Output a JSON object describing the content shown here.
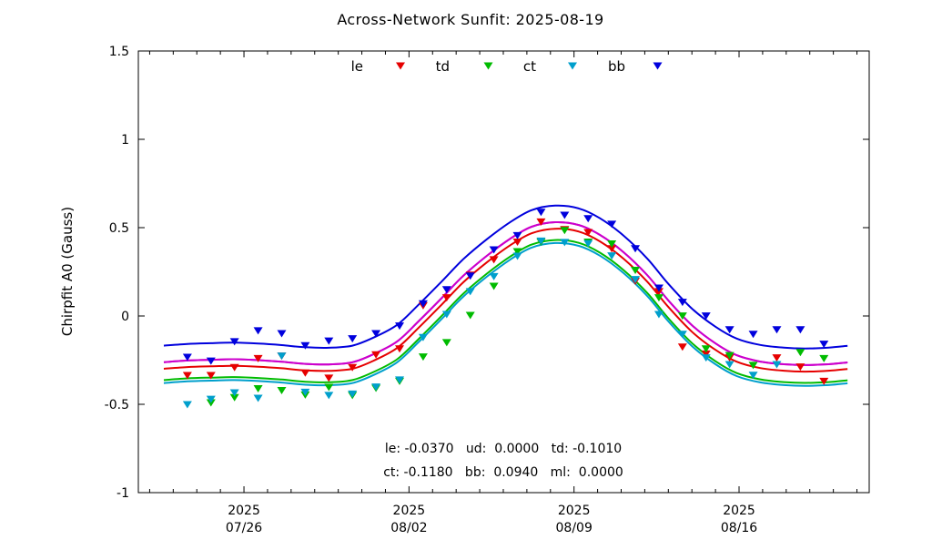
{
  "chart_data": {
    "type": "line",
    "title": "Across-Network Sunfit: 2025-08-19",
    "ylabel": "Chirpfit A0 (Gauss)",
    "ylim": [
      -1,
      1.5
    ],
    "grid": false,
    "legend_position": "top-inside",
    "y_ticks": [
      {
        "label": "1.5",
        "value": 1.5
      },
      {
        "label": "1",
        "value": 1.0
      },
      {
        "label": "0.5",
        "value": 0.5
      },
      {
        "label": "0",
        "value": 0.0
      },
      {
        "label": "-0.5",
        "value": -0.5
      },
      {
        "label": "-1",
        "value": -1.0
      }
    ],
    "x_ticks": [
      {
        "year": "2025",
        "date": "07/26",
        "day": 0
      },
      {
        "year": "2025",
        "date": "08/02",
        "day": 7
      },
      {
        "year": "2025",
        "date": "08/09",
        "day": 14
      },
      {
        "year": "2025",
        "date": "08/16",
        "day": 21
      }
    ],
    "x_range_days": [
      -4.48,
      26.52
    ],
    "x_axis_note": "day 0 = 2025-07-26, minor ticks daily",
    "base_curve": [
      [
        -3.4,
        -0.262
      ],
      [
        -2.4,
        -0.252
      ],
      [
        -1.4,
        -0.248
      ],
      [
        -0.4,
        -0.245
      ],
      [
        0.6,
        -0.25
      ],
      [
        1.6,
        -0.259
      ],
      [
        2.6,
        -0.271
      ],
      [
        3.6,
        -0.274
      ],
      [
        4.6,
        -0.262
      ],
      [
        5.5,
        -0.216
      ],
      [
        6.5,
        -0.144
      ],
      [
        7.4,
        -0.031
      ],
      [
        8.4,
        0.103
      ],
      [
        9.3,
        0.227
      ],
      [
        10.3,
        0.34
      ],
      [
        11.3,
        0.438
      ],
      [
        12.2,
        0.505
      ],
      [
        13.2,
        0.531
      ],
      [
        14.2,
        0.515
      ],
      [
        15.1,
        0.459
      ],
      [
        16.1,
        0.361
      ],
      [
        17.1,
        0.232
      ],
      [
        18.0,
        0.088
      ],
      [
        19.0,
        -0.052
      ],
      [
        20.0,
        -0.155
      ],
      [
        20.9,
        -0.222
      ],
      [
        21.9,
        -0.258
      ],
      [
        22.9,
        -0.273
      ],
      [
        23.8,
        -0.278
      ],
      [
        24.8,
        -0.273
      ],
      [
        25.6,
        -0.263
      ]
    ],
    "series": [
      {
        "label": "le",
        "color": "#e60000",
        "offset": -0.037,
        "marker": "triangle-down",
        "markers": [
          [
            -2.4,
            -0.335
          ],
          [
            -1.4,
            -0.335
          ],
          [
            -0.4,
            -0.29
          ],
          [
            0.6,
            -0.239
          ],
          [
            1.6,
            -0.225
          ],
          [
            2.6,
            -0.321
          ],
          [
            3.6,
            -0.35
          ],
          [
            4.6,
            -0.29
          ],
          [
            5.6,
            -0.218
          ],
          [
            6.6,
            -0.184
          ],
          [
            7.6,
            0.06
          ],
          [
            8.6,
            0.105
          ],
          [
            9.6,
            0.233
          ],
          [
            10.6,
            0.32
          ],
          [
            11.6,
            0.42
          ],
          [
            12.6,
            0.534
          ],
          [
            13.6,
            0.491
          ],
          [
            14.6,
            0.474
          ],
          [
            15.6,
            0.383
          ],
          [
            16.6,
            0.199
          ],
          [
            17.6,
            0.14
          ],
          [
            18.6,
            -0.174
          ],
          [
            19.6,
            -0.213
          ],
          [
            20.6,
            -0.235
          ],
          [
            22.6,
            -0.235
          ],
          [
            23.6,
            -0.287
          ],
          [
            24.6,
            -0.368
          ]
        ]
      },
      {
        "label": "td",
        "color": "#00bb00",
        "offset": -0.101,
        "marker": "triangle-down",
        "markers": [
          [
            -1.4,
            -0.49
          ],
          [
            -0.4,
            -0.46
          ],
          [
            0.6,
            -0.41
          ],
          [
            1.6,
            -0.42
          ],
          [
            2.6,
            -0.445
          ],
          [
            3.6,
            -0.402
          ],
          [
            4.6,
            -0.448
          ],
          [
            5.6,
            -0.407
          ],
          [
            6.6,
            -0.368
          ],
          [
            7.6,
            -0.23
          ],
          [
            8.6,
            -0.149
          ],
          [
            9.6,
            0.005
          ],
          [
            10.6,
            0.17
          ],
          [
            11.6,
            0.366
          ],
          [
            12.6,
            0.42
          ],
          [
            13.6,
            0.486
          ],
          [
            14.6,
            0.42
          ],
          [
            15.6,
            0.41
          ],
          [
            16.6,
            0.26
          ],
          [
            17.6,
            0.105
          ],
          [
            18.6,
            0.002
          ],
          [
            19.6,
            -0.184
          ],
          [
            20.6,
            -0.222
          ],
          [
            21.6,
            -0.278
          ],
          [
            23.6,
            -0.205
          ],
          [
            24.6,
            -0.239
          ]
        ]
      },
      {
        "label": "ct",
        "color": "#009fcc",
        "offset": -0.118,
        "marker": "triangle-down",
        "markers": [
          [
            -2.4,
            -0.5
          ],
          [
            -1.4,
            -0.47
          ],
          [
            -0.4,
            -0.433
          ],
          [
            0.6,
            -0.464
          ],
          [
            1.6,
            -0.225
          ],
          [
            2.6,
            -0.43
          ],
          [
            3.6,
            -0.448
          ],
          [
            4.6,
            -0.44
          ],
          [
            5.6,
            -0.4
          ],
          [
            6.6,
            -0.36
          ],
          [
            7.6,
            -0.12
          ],
          [
            8.6,
            0.01
          ],
          [
            9.6,
            0.14
          ],
          [
            10.6,
            0.225
          ],
          [
            11.6,
            0.34
          ],
          [
            12.6,
            0.426
          ],
          [
            13.6,
            0.418
          ],
          [
            14.6,
            0.411
          ],
          [
            15.6,
            0.342
          ],
          [
            16.6,
            0.208
          ],
          [
            17.6,
            0.01
          ],
          [
            18.6,
            -0.102
          ],
          [
            19.6,
            -0.235
          ],
          [
            20.6,
            -0.273
          ],
          [
            21.6,
            -0.334
          ],
          [
            22.6,
            -0.273
          ]
        ]
      },
      {
        "label": "bb",
        "color": "#0000dd",
        "offset": 0.094,
        "marker": "triangle-down",
        "markers": [
          [
            -2.4,
            -0.232
          ],
          [
            -1.4,
            -0.253
          ],
          [
            -0.4,
            -0.144
          ],
          [
            0.6,
            -0.082
          ],
          [
            1.6,
            -0.098
          ],
          [
            2.6,
            -0.166
          ],
          [
            3.6,
            -0.14
          ],
          [
            4.6,
            -0.127
          ],
          [
            5.6,
            -0.098
          ],
          [
            6.6,
            -0.055
          ],
          [
            7.6,
            0.071
          ],
          [
            8.6,
            0.151
          ],
          [
            9.6,
            0.228
          ],
          [
            10.6,
            0.376
          ],
          [
            11.6,
            0.457
          ],
          [
            12.6,
            0.589
          ],
          [
            13.6,
            0.572
          ],
          [
            14.6,
            0.553
          ],
          [
            15.6,
            0.521
          ],
          [
            16.6,
            0.383
          ],
          [
            17.6,
            0.16
          ],
          [
            18.6,
            0.079
          ],
          [
            19.6,
            0.002
          ],
          [
            20.6,
            -0.076
          ],
          [
            21.6,
            -0.102
          ],
          [
            22.6,
            -0.076
          ],
          [
            23.6,
            -0.076
          ],
          [
            24.6,
            -0.158
          ]
        ]
      }
    ],
    "extra_curves": [
      {
        "label": "ud",
        "color": "#cc00cc",
        "offset": 0.0
      },
      {
        "label": "ml",
        "color": "#cc00cc",
        "offset": 0.0
      }
    ],
    "fit_offsets": {
      "le": -0.037,
      "ud": 0.0,
      "td": -0.101,
      "ct": -0.118,
      "bb": 0.094,
      "ml": 0.0
    },
    "stats_lines": [
      "le: -0.0370   ud:  0.0000   td: -0.1010",
      "ct: -0.1180   bb:  0.0940   ml:  0.0000"
    ]
  }
}
